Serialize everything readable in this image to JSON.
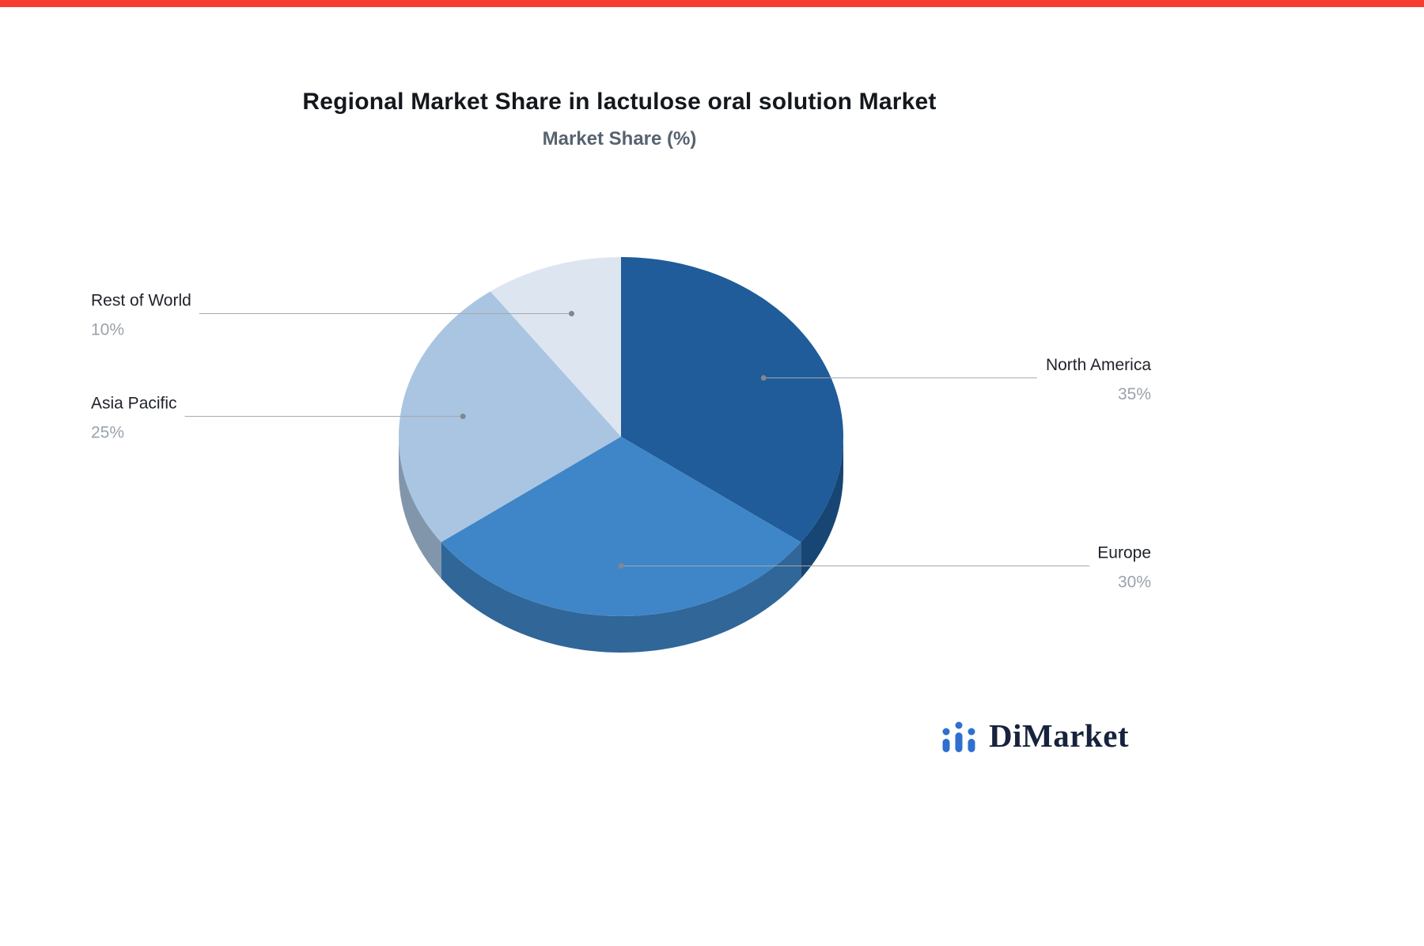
{
  "page": {
    "top_bar_color": "#f53d30",
    "background_color": "#ffffff"
  },
  "chart_data": {
    "type": "pie",
    "title": "Regional Market Share in lactulose oral solution Market",
    "subtitle": "Market Share (%)",
    "unit": "%",
    "labels": [
      "North America",
      "Europe",
      "Asia Pacific",
      "Rest of World"
    ],
    "values": [
      35,
      30,
      25,
      10
    ],
    "colors": [
      "#1f5c99",
      "#3f86c8",
      "#aac5e1",
      "#dde6f0"
    ],
    "style": "3d",
    "start_angle_deg": 0,
    "direction": "clockwise",
    "legend_position": "callouts",
    "label_color": "#1f2329",
    "value_color": "#9aa2ab",
    "line_color": "#a3a8af",
    "dot_color": "#82878f"
  },
  "brand": {
    "name": "DiMarket",
    "icon": "bar-chart-icon",
    "icon_color": "#2f6fd0",
    "text_color": "#17233d"
  }
}
